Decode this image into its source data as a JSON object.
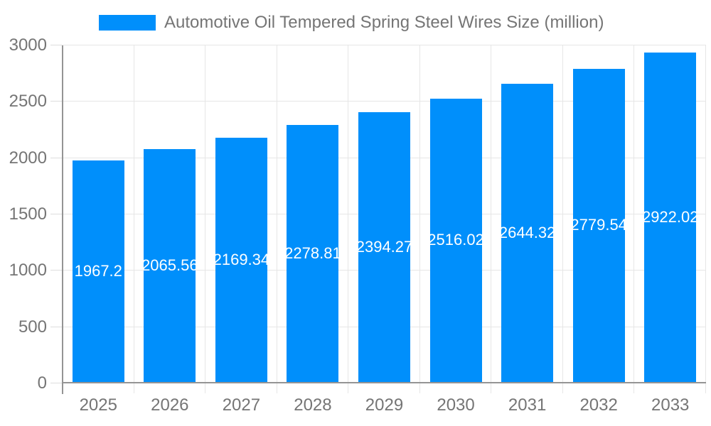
{
  "legend": {
    "label": "Automotive Oil Tempered Spring Steel Wires Size (million)"
  },
  "colors": {
    "bar": "#008FFB",
    "grid_line": "#e6e6e6",
    "axis_line": "#949494",
    "tick_mark": "#dddddd",
    "tick_label": "#757575",
    "bar_value_label": "#ffffff",
    "background": "#ffffff"
  },
  "chart_data": {
    "type": "bar",
    "title": "Automotive Oil Tempered Spring Steel Wires Size (million)",
    "categories": [
      "2025",
      "2026",
      "2027",
      "2028",
      "2029",
      "2030",
      "2031",
      "2032",
      "2033"
    ],
    "series": [
      {
        "name": "Automotive Oil Tempered Spring Steel Wires Size (million)",
        "values": [
          1967.2,
          2065.56,
          2169.34,
          2278.81,
          2394.27,
          2516.02,
          2644.32,
          2779.54,
          2922.02
        ],
        "labels": [
          "1967.2",
          "2065.56",
          "2169.34",
          "2278.81",
          "2394.27",
          "2516.02",
          "2644.32",
          "2779.54",
          "2922.02"
        ]
      }
    ],
    "xlabel": "",
    "ylabel": "",
    "ylim": [
      0,
      3000
    ],
    "yticks": [
      0,
      500,
      1000,
      1500,
      2000,
      2500,
      3000
    ],
    "grid": true,
    "legend_position": "top",
    "bar_label_position": "center-inside"
  }
}
